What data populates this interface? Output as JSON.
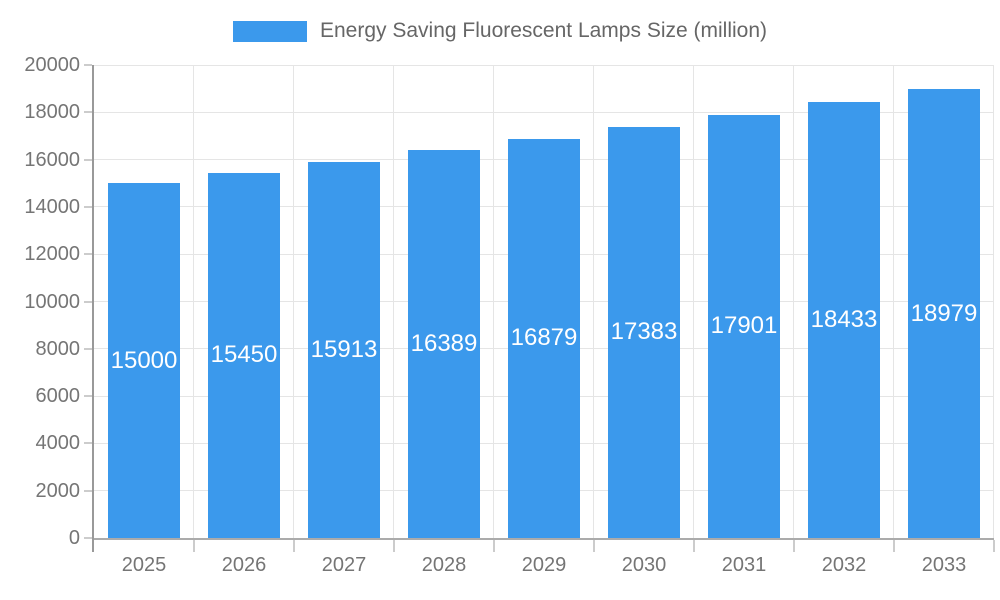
{
  "legend": {
    "label": "Energy Saving Fluorescent Lamps Size (million)"
  },
  "chart_data": {
    "type": "bar",
    "title": "Energy Saving Fluorescent Lamps Size (million)",
    "categories": [
      "2025",
      "2026",
      "2027",
      "2028",
      "2029",
      "2030",
      "2031",
      "2032",
      "2033"
    ],
    "values": [
      15000,
      15450,
      15913,
      16389,
      16879,
      17383,
      17901,
      18433,
      18979
    ],
    "series": [
      {
        "name": "Energy Saving Fluorescent Lamps Size (million)",
        "values": [
          15000,
          15450,
          15913,
          16389,
          16879,
          17383,
          17901,
          18433,
          18979
        ]
      }
    ],
    "xlabel": "",
    "ylabel": "",
    "ylim": [
      0,
      20000
    ],
    "yticks": [
      0,
      2000,
      4000,
      6000,
      8000,
      10000,
      12000,
      14000,
      16000,
      18000,
      20000
    ],
    "bar_labels_visible": true,
    "grid": true,
    "legend_position": "top-center"
  },
  "style": {
    "colors": {
      "bar": "#3b99ec",
      "barLabel": "#ffffff",
      "grid": "#e5e5e5",
      "tick": "#cccccc",
      "axisLine": "#999999",
      "axisBottom": "#ababab",
      "axisText": "#757575",
      "legendText": "#666666",
      "background": "#ffffff"
    }
  }
}
